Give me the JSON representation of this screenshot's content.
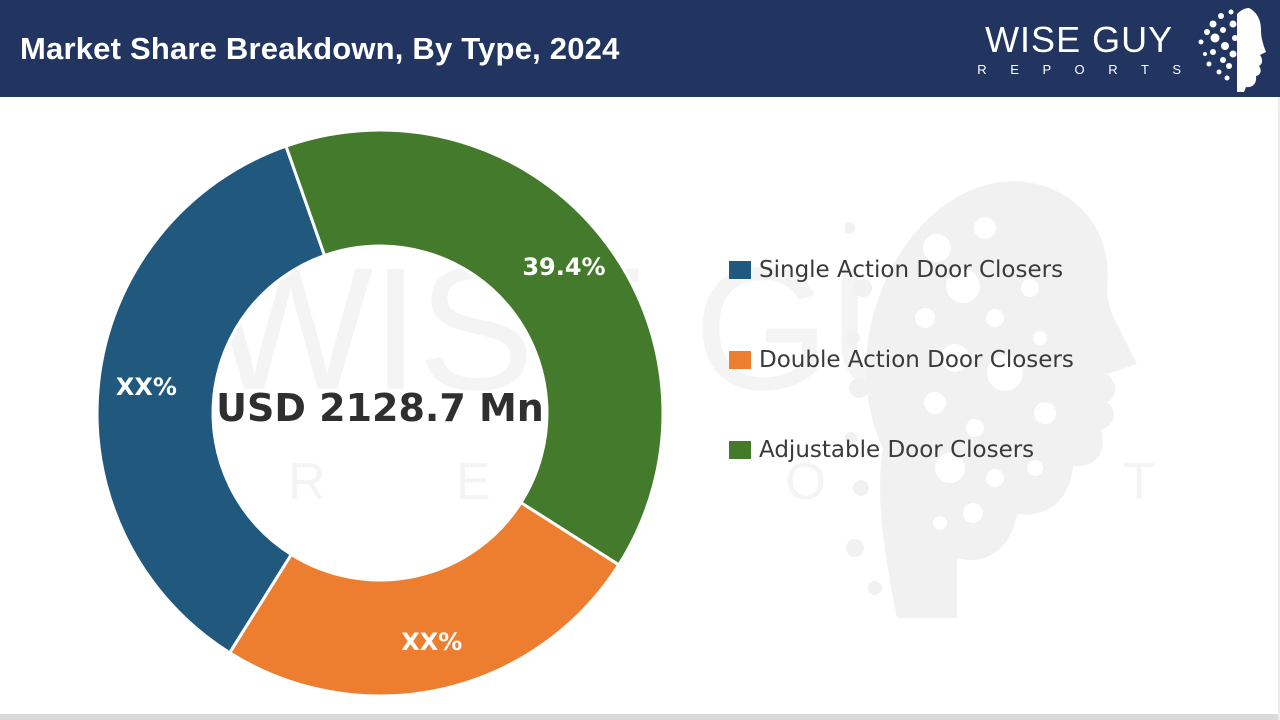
{
  "header": {
    "title": "Market Share Breakdown, By Type, 2024",
    "bg_color": "#213560",
    "logo": {
      "name": "WISE GUY",
      "subtitle": "R E P O R T S"
    }
  },
  "watermark": {
    "text": "WISE GUY",
    "subtext": "R E P O R T S"
  },
  "chart_data": {
    "type": "pie",
    "variant": "donut",
    "title": "Market Share Breakdown, By Type, 2024",
    "center_label": "USD 2128.7 Mn",
    "start_angle_deg": 109.4,
    "direction": "counterclockwise",
    "legend_position": "right",
    "slices": [
      {
        "label": "Single Action Door Closers",
        "display_pct": "XX%",
        "pct": 35.7,
        "color": "#20587E"
      },
      {
        "label": "Double Action Door Closers",
        "display_pct": "XX%",
        "pct": 24.9,
        "color": "#EE7E2F"
      },
      {
        "label": "Adjustable Door Closers",
        "display_pct": "39.4%",
        "pct": 39.4,
        "color": "#447A2B"
      }
    ]
  }
}
